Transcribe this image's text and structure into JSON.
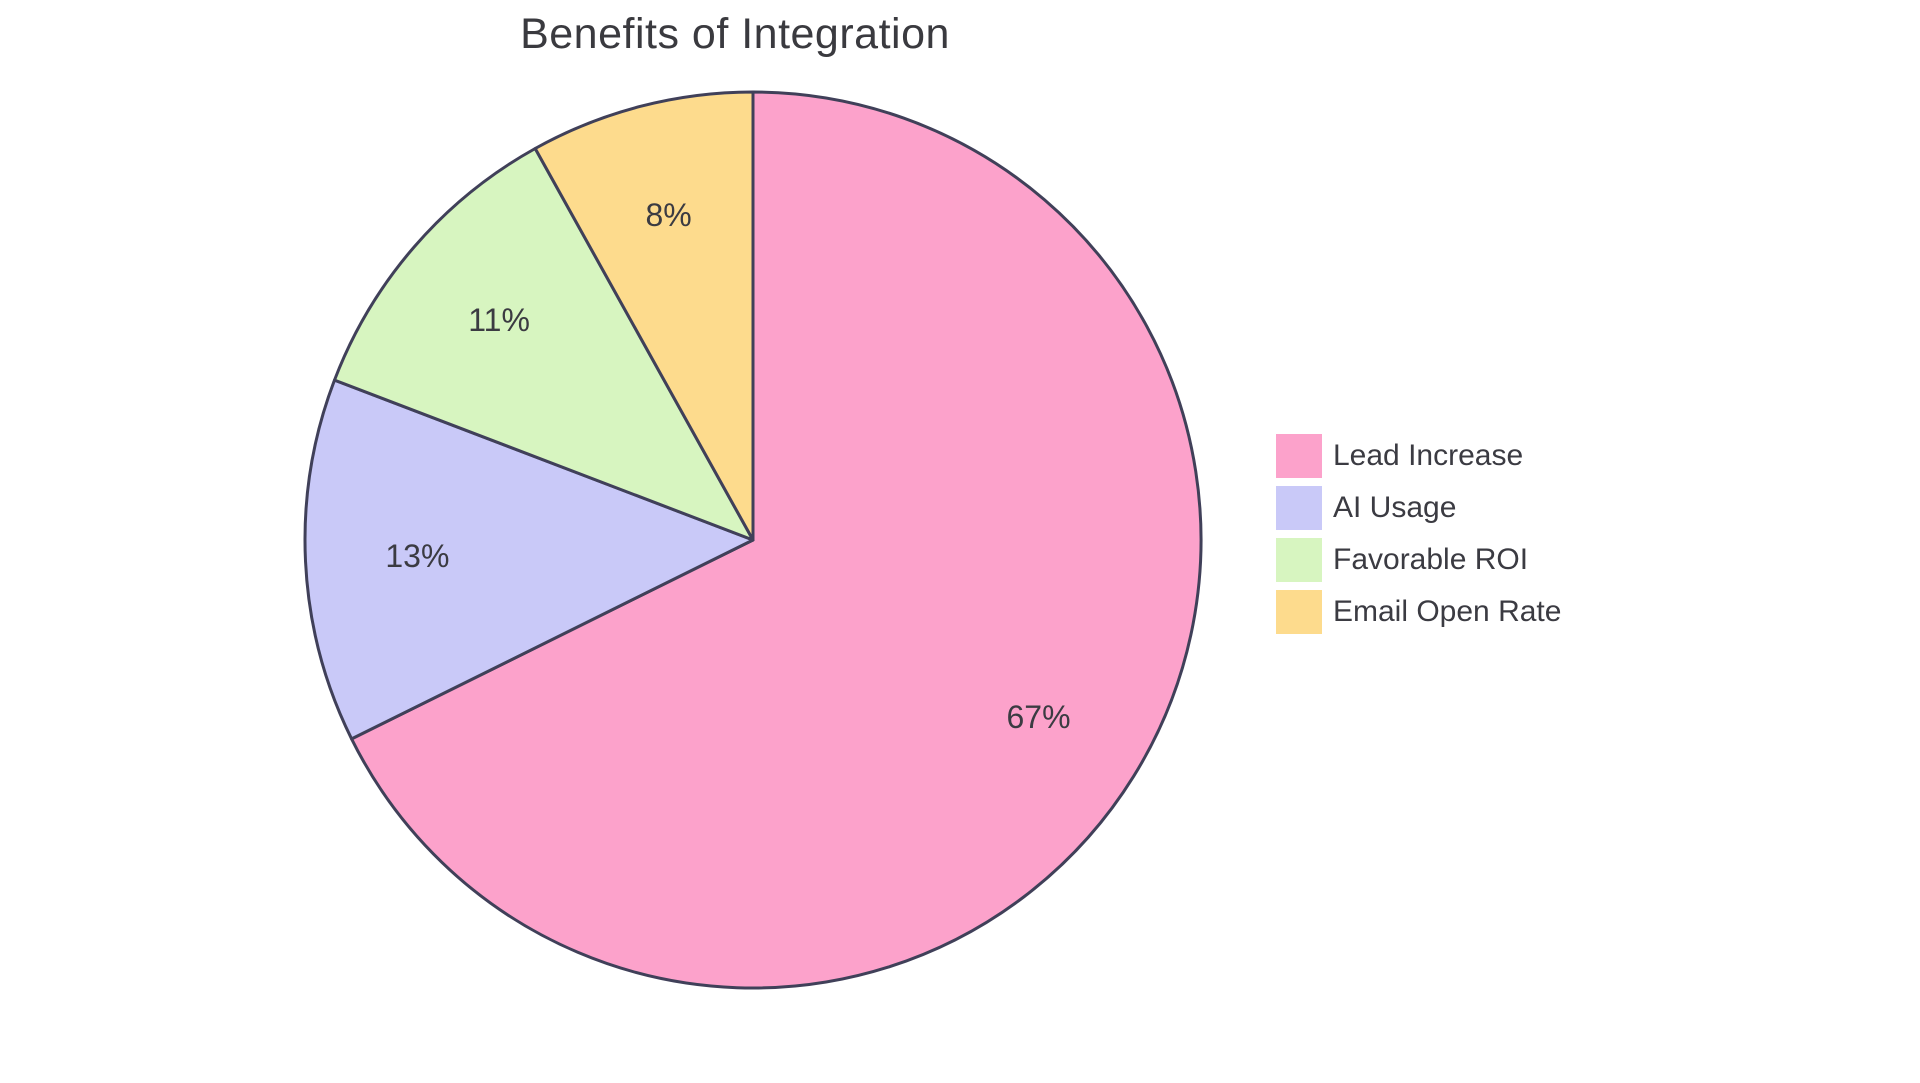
{
  "page": {
    "background_color": "#ffffff",
    "title_color": "#3a3a3f",
    "text_color": "#3b3b42"
  },
  "chart_data": {
    "type": "pie",
    "title": "Benefits of Integration",
    "labels": [
      "Lead Increase",
      "AI Usage",
      "Favorable ROI",
      "Email Open Rate"
    ],
    "values": [
      67,
      13,
      11,
      8
    ],
    "slice_labels": [
      "67%",
      "13%",
      "11%",
      "8%"
    ],
    "colors": [
      "#FCA2CB",
      "#C9C9F8",
      "#D7F5C0",
      "#FDDB8D"
    ],
    "slice_border_color": "#404059",
    "label_text_color": "#3b3b42",
    "start_angle_deg": 0,
    "direction": "clockwise",
    "legend": {
      "position": "right",
      "entries": [
        "Lead Increase",
        "AI Usage",
        "Favorable ROI",
        "Email Open Rate"
      ]
    }
  }
}
